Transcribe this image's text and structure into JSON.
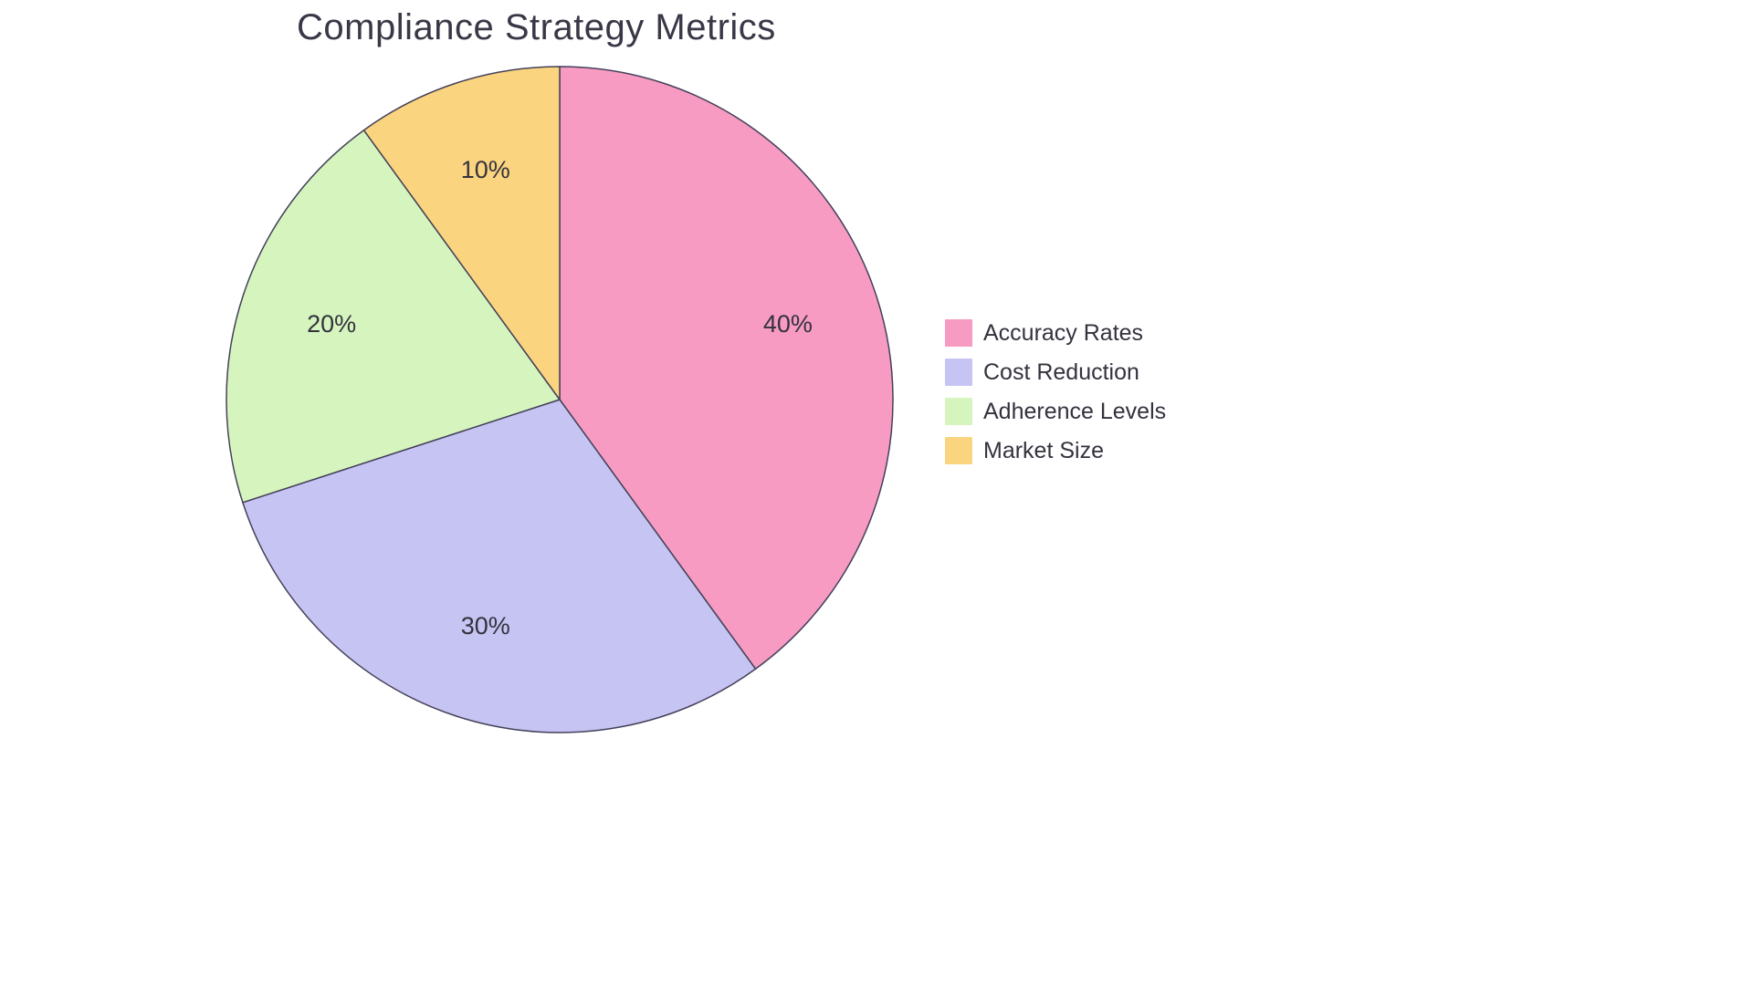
{
  "title": "Compliance Strategy Metrics",
  "chart_data": {
    "type": "pie",
    "title": "Compliance Strategy Metrics",
    "categories": [
      "Accuracy Rates",
      "Cost Reduction",
      "Adherence Levels",
      "Market Size"
    ],
    "values": [
      40,
      30,
      20,
      10
    ],
    "unit": "%",
    "slice_labels": [
      "40%",
      "30%",
      "20%",
      "10%"
    ],
    "colors": [
      "#f79bc3",
      "#c6c4f2",
      "#d6f5be",
      "#fad47f"
    ],
    "stroke_color": "#44415a",
    "text_color": "#34323e",
    "legend_position": "right",
    "start_angle_deg": 0,
    "direction": "clockwise"
  }
}
